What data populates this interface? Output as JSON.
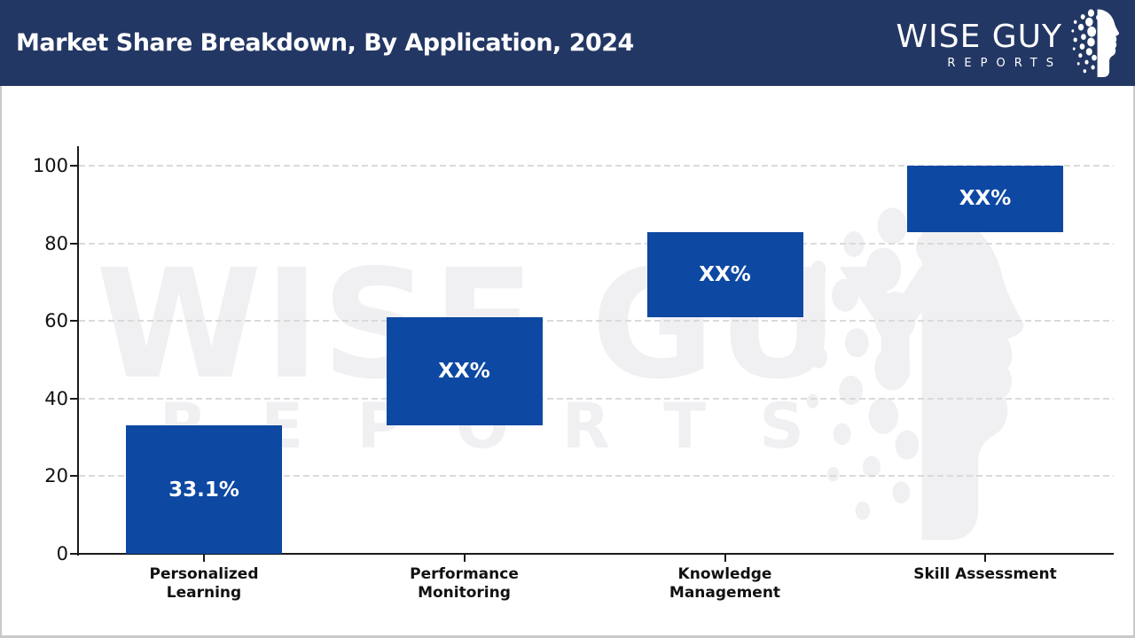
{
  "header": {
    "title": "Market Share Breakdown, By Application, 2024",
    "logo": {
      "line1": "WISE GUY",
      "line2": "REPORTS",
      "face_icon": "dotted-head-profile"
    }
  },
  "watermark": {
    "line1": "WISE GUY",
    "line2": "R E P O R T S",
    "face_icon": "dotted-head-profile"
  },
  "colors": {
    "header_bg": "#233764",
    "bar": "#0d48a2",
    "grid": "#dadada",
    "axis": "#1a1a1a",
    "watermark": "#f0f0f2",
    "border": "#c9c9c9",
    "text": "#111111",
    "white": "#ffffff"
  },
  "chart_data": {
    "type": "bar",
    "subtype": "waterfall",
    "title": "Market Share Breakdown, By Application, 2024",
    "categories": [
      "Personalized Learning",
      "Performance Monitoring",
      "Knowledge Management",
      "Skill Assessment"
    ],
    "category_lines": [
      [
        "Personalized",
        "Learning"
      ],
      [
        "Performance",
        "Monitoring"
      ],
      [
        "Knowledge",
        "Management"
      ],
      [
        "Skill Assessment"
      ]
    ],
    "segments": [
      {
        "category": "Personalized Learning",
        "start": 0,
        "end": 33.1,
        "value_label": "33.1%"
      },
      {
        "category": "Performance Monitoring",
        "start": 33.1,
        "end": 61.0,
        "value_label": "XX%"
      },
      {
        "category": "Knowledge Management",
        "start": 61.0,
        "end": 82.9,
        "value_label": "XX%"
      },
      {
        "category": "Skill Assessment",
        "start": 82.9,
        "end": 100,
        "value_label": "XX%"
      }
    ],
    "ylim": [
      0,
      100
    ],
    "yticks": [
      0,
      20,
      40,
      60,
      80,
      100
    ],
    "xlabel": "",
    "ylabel": "",
    "grid": "horizontal-dashed",
    "legend": "none"
  }
}
